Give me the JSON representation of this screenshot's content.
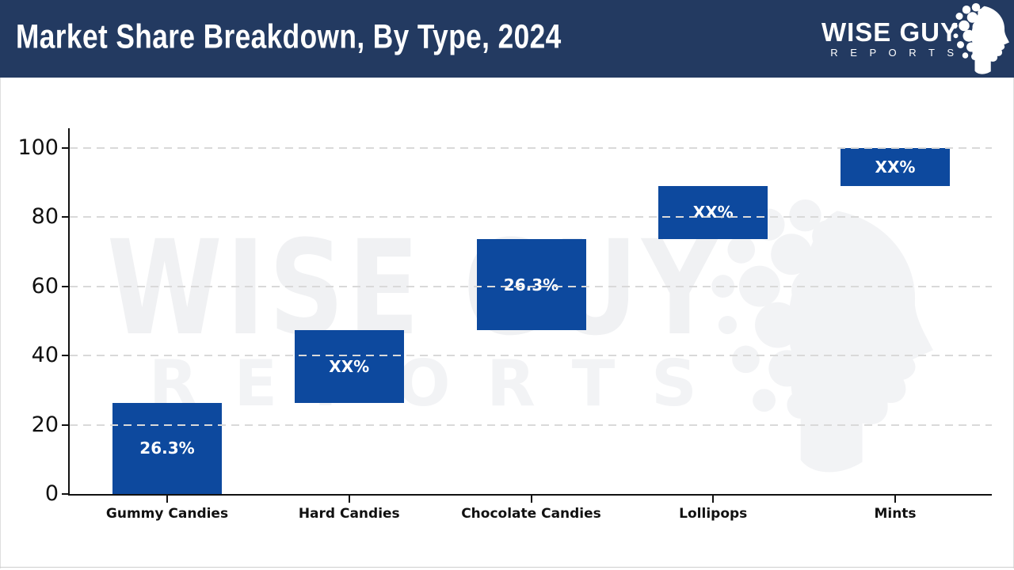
{
  "header": {
    "title": "Market Share Breakdown, By Type, 2024",
    "bg_color": "#233a61",
    "logo": {
      "line1": "WISE GUY",
      "line2": "R E P O R T S"
    }
  },
  "watermark": {
    "line1": "WISE GUY",
    "line2": "R E P O R T S"
  },
  "chart_data": {
    "type": "bar",
    "subtype": "waterfall-floating-bars",
    "title": "Market Share Breakdown, By Type, 2024",
    "xlabel": "",
    "ylabel": "",
    "ylim": [
      0,
      105
    ],
    "yticks": [
      0,
      20,
      40,
      60,
      80,
      100
    ],
    "grid": "horizontal-dashed",
    "legend": "none",
    "bar_color": "#0d499e",
    "grid_color": "#d9d9d9",
    "axis_color": "#111111",
    "categories": [
      "Gummy Candies",
      "Hard Candies",
      "Chocolate Candies",
      "Lollipops",
      "Mints"
    ],
    "segments": [
      {
        "category": "Gummy Candies",
        "start": 0,
        "end": 26.3,
        "label": "26.3%",
        "estimated_value": 26.3
      },
      {
        "category": "Hard Candies",
        "start": 26.3,
        "end": 47.3,
        "label": "XX%",
        "estimated_value": 21.0
      },
      {
        "category": "Chocolate Candies",
        "start": 47.3,
        "end": 73.6,
        "label": "26.3%",
        "estimated_value": 26.3
      },
      {
        "category": "Lollipops",
        "start": 73.6,
        "end": 89.0,
        "label": "XX%",
        "estimated_value": 15.4
      },
      {
        "category": "Mints",
        "start": 89.0,
        "end": 100.0,
        "label": "XX%",
        "estimated_value": 11.0
      }
    ]
  }
}
